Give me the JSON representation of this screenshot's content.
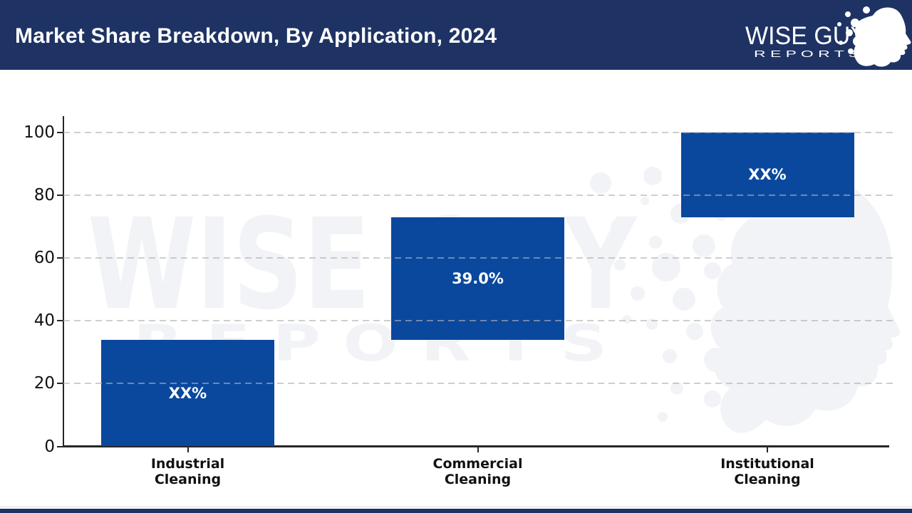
{
  "header": {
    "title": "Market Share Breakdown, By Application, 2024",
    "logo": {
      "line1": "WISE GUY",
      "line2": "REPORTS"
    }
  },
  "watermark": {
    "line1": "WISE GUY",
    "line2": "REPORTS"
  },
  "chart_data": {
    "type": "bar",
    "subtype": "floating-waterfall",
    "title": "Market Share Breakdown, By Application, 2024",
    "categories": [
      "Industrial Cleaning",
      "Commercial Cleaning",
      "Institutional Cleaning"
    ],
    "series": [
      {
        "name": "Market Share (%)",
        "segments": [
          {
            "category": "Industrial Cleaning",
            "from": 0,
            "to": 34,
            "label": "XX%"
          },
          {
            "category": "Commercial Cleaning",
            "from": 34,
            "to": 73,
            "label": "39.0%"
          },
          {
            "category": "Institutional Cleaning",
            "from": 73,
            "to": 100,
            "label": "XX%"
          }
        ]
      }
    ],
    "ylim": [
      0,
      105
    ],
    "yticks": [
      0,
      20,
      40,
      60,
      80,
      100
    ],
    "grid": "horizontal-dashed",
    "legend_position": "none"
  },
  "colors": {
    "header_bg": "#1e3364",
    "bar": "#0a489e",
    "axis": "#262626",
    "grid": "#c9c9c9",
    "tick_text": "#111111",
    "bar_label_text": "#ffffff",
    "watermark": "#f2f3f6",
    "footer_bar": "#1e3364",
    "hairline": "#d9d9d9"
  }
}
